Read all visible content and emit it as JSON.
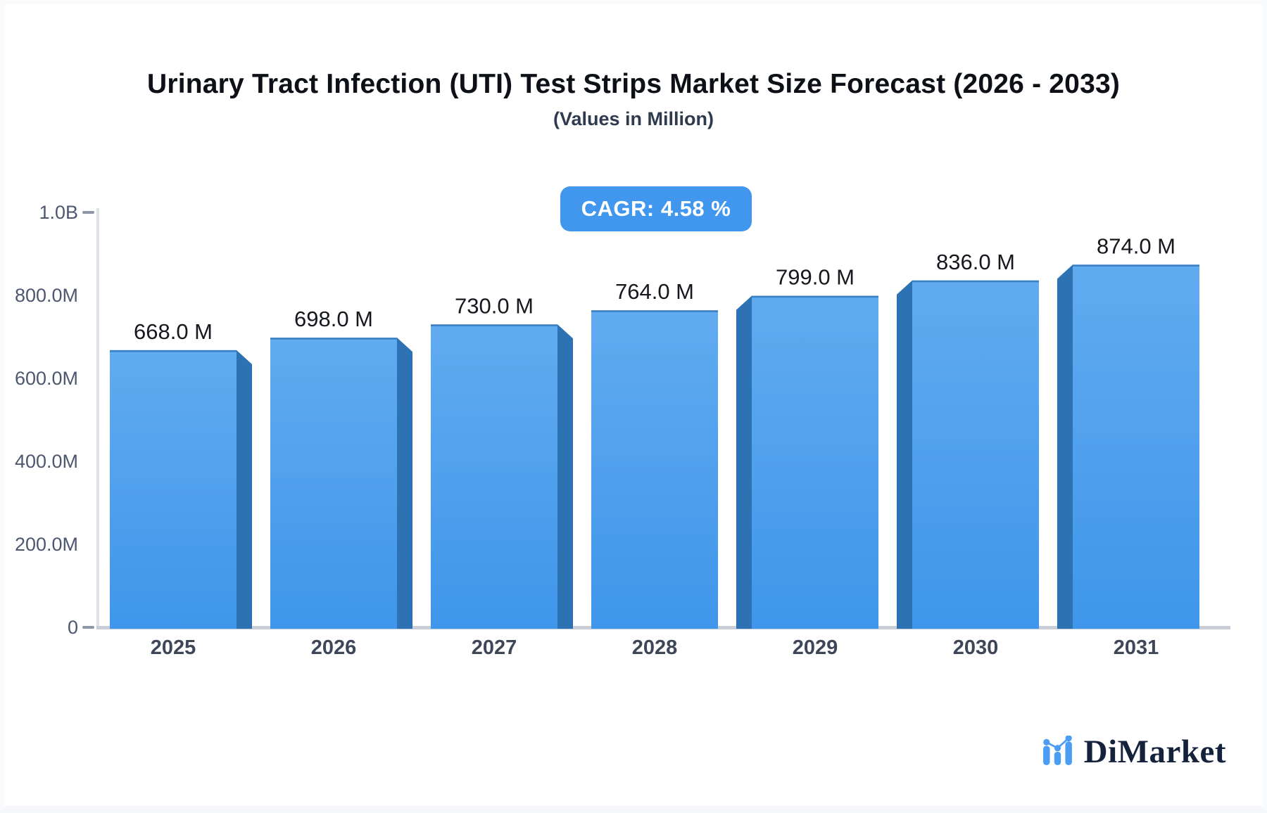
{
  "header": {
    "title": "Urinary Tract Infection (UTI) Test Strips Market Size Forecast (2026 - 2033)",
    "subtitle": "(Values in Million)"
  },
  "badge": {
    "label": "CAGR: 4.58 %",
    "background": "#4196ee",
    "text_color": "#ffffff"
  },
  "logo": {
    "text": "DiMarket",
    "icon": "bar-chart-trend-icon",
    "icon_color": "#4a9df3",
    "text_color": "#15223b"
  },
  "chart_data": {
    "type": "bar",
    "title": "Urinary Tract Infection (UTI) Test Strips Market Size Forecast (2026 - 2033)",
    "subtitle": "(Values in Million)",
    "categories": [
      "2025",
      "2026",
      "2027",
      "2028",
      "2029",
      "2030",
      "2031"
    ],
    "values": [
      668,
      698,
      730,
      764,
      799,
      836,
      874
    ],
    "value_labels": [
      "668.0 M",
      "698.0 M",
      "730.0 M",
      "764.0 M",
      "799.0 M",
      "836.0 M",
      "874.0 M"
    ],
    "xlabel": "",
    "ylabel": "",
    "ylim": [
      0,
      1000
    ],
    "yticks": [
      {
        "value": 0,
        "label": "0"
      },
      {
        "value": 200,
        "label": "200.0M"
      },
      {
        "value": 400,
        "label": "400.0M"
      },
      {
        "value": 600,
        "label": "600.0M"
      },
      {
        "value": 800,
        "label": "800.0M"
      },
      {
        "value": 1000,
        "label": "1.0B"
      }
    ],
    "grid": false,
    "legend": false,
    "effect": "3d-center-perspective",
    "colors": {
      "bar_top": "#61abf0",
      "bar_bottom": "#3f96ea",
      "bar_side": "#2d72b2",
      "bar_top_edge": "#3c80c4",
      "axis_line": "#dfe2e8",
      "baseline": "#c9cdd5",
      "tick_dash": "#8f97a6",
      "tick_label": "#4d5870",
      "x_label": "#3d4758",
      "value_label": "#15181d"
    }
  }
}
